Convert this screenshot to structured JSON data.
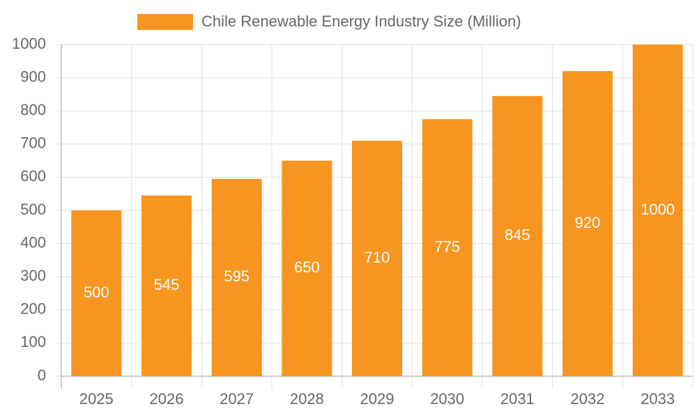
{
  "chart_data": {
    "type": "bar",
    "categories": [
      "2025",
      "2026",
      "2027",
      "2028",
      "2029",
      "2030",
      "2031",
      "2032",
      "2033"
    ],
    "series": [
      {
        "name": "Chile Renewable Energy Industry Size (Million)",
        "color": "#f79521",
        "values": [
          500,
          545,
          595,
          650,
          710,
          775,
          845,
          920,
          1000
        ]
      }
    ],
    "ylim": [
      0,
      1000
    ],
    "yticks": [
      0,
      100,
      200,
      300,
      400,
      500,
      600,
      700,
      800,
      900,
      1000
    ],
    "grid": true,
    "legend": "top",
    "data_labels": true
  }
}
